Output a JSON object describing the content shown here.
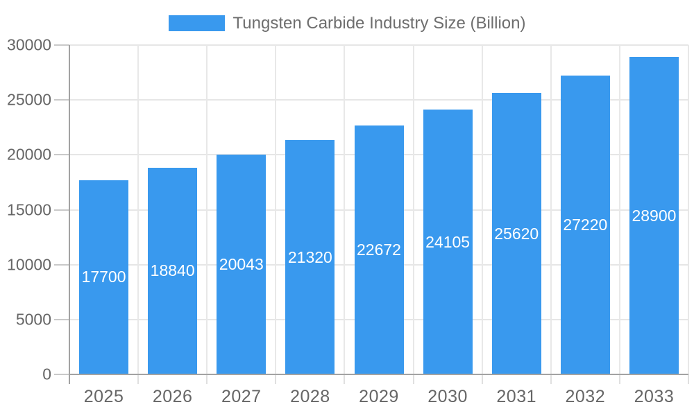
{
  "legend": {
    "label": "Tungsten Carbide Industry Size (Billion)"
  },
  "colors": {
    "bar_fill": "#3999ee",
    "grid_line": "#e6e6e6",
    "tick_mark": "#c9c9c9",
    "axis_line": "#a3a3a3",
    "axis_tick_label_text": "#666666",
    "legend_text": "#6e6e6e",
    "bar_value_label_text": "#ffffff",
    "background": "#ffffff"
  },
  "chart_data": {
    "type": "bar",
    "title": "Tungsten Carbide Industry Size (Billion)",
    "categories": [
      "2025",
      "2026",
      "2027",
      "2028",
      "2029",
      "2030",
      "2031",
      "2032",
      "2033"
    ],
    "values": [
      17700,
      18840,
      20043,
      21320,
      22672,
      24105,
      25620,
      27220,
      28900
    ],
    "series": [
      {
        "name": "Tungsten Carbide Industry Size (Billion)",
        "values": [
          17700,
          18840,
          20043,
          21320,
          22672,
          24105,
          25620,
          27220,
          28900
        ]
      }
    ],
    "xlabel": "",
    "ylabel": "",
    "ylim": [
      0,
      30000
    ],
    "yticks": [
      0,
      5000,
      10000,
      15000,
      20000,
      25000,
      30000
    ],
    "grid": "on",
    "legend_position": "top-center",
    "value_labels_position": "inside-center-vertical"
  }
}
